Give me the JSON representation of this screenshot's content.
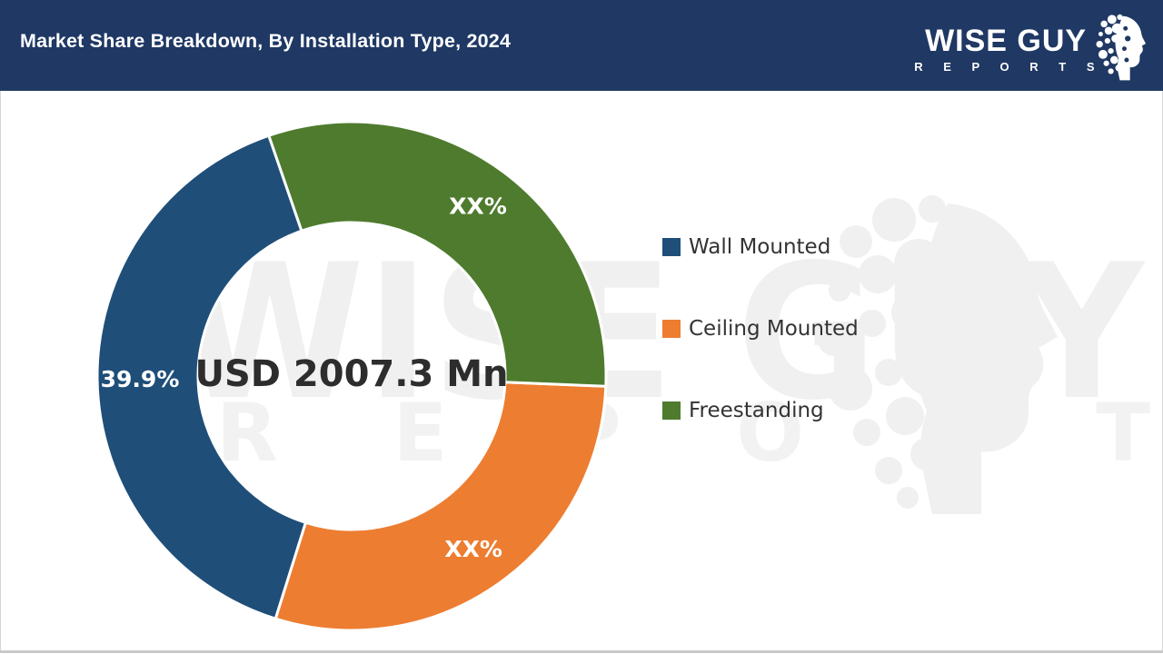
{
  "header": {
    "title": "Market Share Breakdown, By Installation Type, 2024",
    "bg_color": "#1f3864",
    "logo": {
      "line1": "WISE GUY",
      "line2": "R E P O R T S"
    }
  },
  "watermark": {
    "line1": "WISE GUY",
    "line2": "R E P O R T S",
    "color": "#f0f0f0"
  },
  "chart_data": {
    "type": "pie",
    "subtype": "donut",
    "title": "Market Share Breakdown, By Installation Type, 2024",
    "center_label": "USD 2007.3 Mn",
    "legend_position": "right",
    "segments": [
      {
        "name": "Wall Mounted",
        "label": "39.9%",
        "value_pct": 39.9,
        "color": "#1f4e79",
        "start_deg": 197.4,
        "end_deg": 341.0
      },
      {
        "name": "Ceiling Mounted",
        "label": "XX%",
        "value_pct": 29.2,
        "color": "#ed7d31",
        "start_deg": 92.3,
        "end_deg": 197.4
      },
      {
        "name": "Freestanding",
        "label": "XX%",
        "value_pct": 30.9,
        "color": "#4e7b2d",
        "start_deg": 341.0,
        "end_deg": 452.3
      }
    ]
  },
  "colors": {
    "header_bg": "#1f3864",
    "frame_line": "#c9c9c9",
    "legend_text": "#333333",
    "center_text": "#2d2d2d",
    "segment_separator": "#ffffff"
  }
}
